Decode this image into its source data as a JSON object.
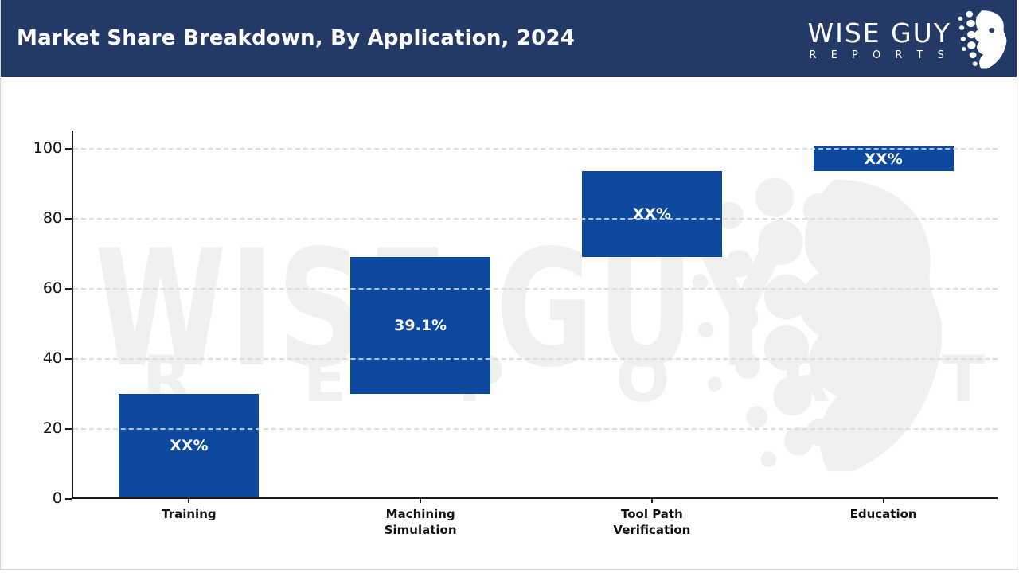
{
  "header": {
    "title": "Market Share Breakdown, By Application, 2024",
    "brand": {
      "line1": "WISE GUY",
      "line2": "R E P O R T S"
    },
    "bg_color": "#233a66"
  },
  "watermark": {
    "line1": "WISE GUY",
    "line2": "R E P O R T S"
  },
  "chart_data": {
    "type": "bar",
    "subtype": "floating-waterfall",
    "title": "Market Share Breakdown, By Application, 2024",
    "categories": [
      "Training",
      "Machining Simulation",
      "Tool Path Verification",
      "Education"
    ],
    "category_label_lines": [
      [
        "Training"
      ],
      [
        "Machining",
        "Simulation"
      ],
      [
        "Tool Path",
        "Verification"
      ],
      [
        "Education"
      ]
    ],
    "segments": [
      {
        "category": "Training",
        "start": 0,
        "end": 29.3,
        "label": "XX%"
      },
      {
        "category": "Machining Simulation",
        "start": 29.3,
        "end": 68.4,
        "value": 39.1,
        "label": "39.1%"
      },
      {
        "category": "Tool Path Verification",
        "start": 68.4,
        "end": 92.9,
        "label": "XX%"
      },
      {
        "category": "Education",
        "start": 92.9,
        "end": 99.9,
        "label": "XX%"
      },
      {
        "note": "only the Machining Simulation segment shows a numeric value; others are masked as XX%"
      }
    ],
    "xlabel": "",
    "ylabel": "",
    "yticks": [
      0,
      20,
      40,
      60,
      80,
      100
    ],
    "ylim": [
      0,
      105
    ],
    "grid": "horizontal dashed lines drawn above bars",
    "legend": "none",
    "bar_color": "#0d4a9f",
    "bar_label_color": "#ffffff",
    "axis_color": "#1a1a1a",
    "gridline_color": "#d8d8d8"
  }
}
